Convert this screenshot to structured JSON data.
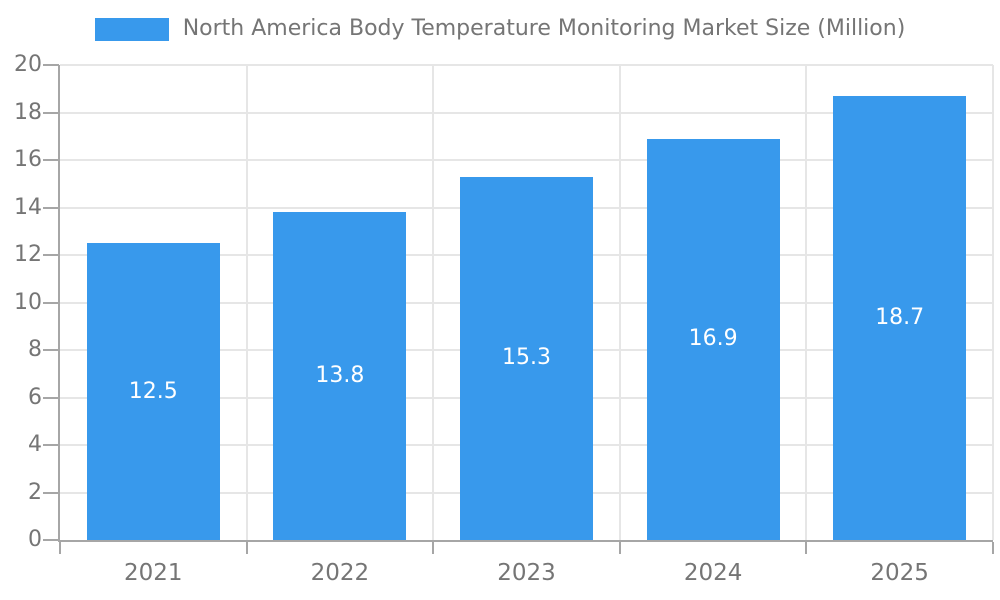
{
  "chart_data": {
    "type": "bar",
    "title": "North America Body Temperature Monitoring Market Size (Million)",
    "categories": [
      "2021",
      "2022",
      "2023",
      "2024",
      "2025"
    ],
    "values": [
      12.5,
      13.8,
      15.3,
      16.9,
      18.7
    ],
    "xlabel": "",
    "ylabel": "",
    "ylim": [
      0,
      20
    ],
    "yticks": [
      0,
      2,
      4,
      6,
      8,
      10,
      12,
      14,
      16,
      18,
      20
    ],
    "grid": true,
    "legend_position": "top",
    "value_label_position": "inside-middle"
  },
  "legend": {
    "label": "North America Body Temperature Monitoring Market Size (Million)"
  },
  "colors": {
    "bar": "#3899EC",
    "grid": "#E6E6E6",
    "axis": "#A6A6A6",
    "text": "#757575",
    "value_label": "#FFFFFF",
    "background": "#FFFFFF"
  }
}
